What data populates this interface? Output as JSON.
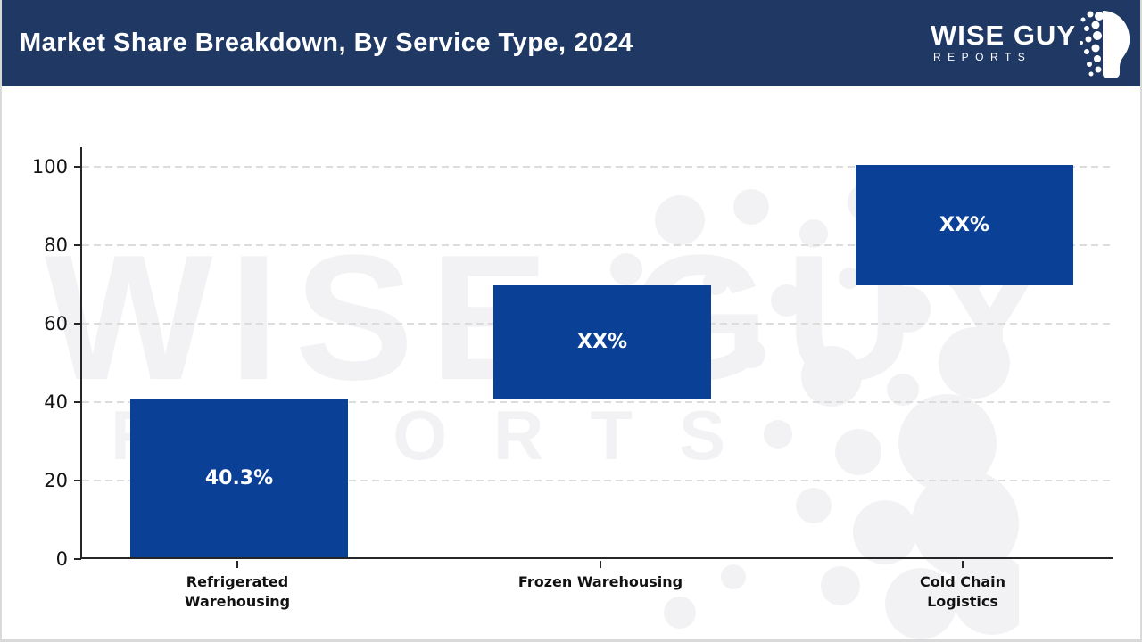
{
  "header": {
    "title": "Market Share Breakdown, By Service Type, 2024",
    "logo": {
      "name": "WISE GUY",
      "sub": "REPORTS"
    }
  },
  "watermark": {
    "line1": "WISE GUY",
    "line2": "REPORTS"
  },
  "chart_data": {
    "type": "bar",
    "subtype": "waterfall",
    "title": "Market Share Breakdown, By Service Type, 2024",
    "categories": [
      "Refrigerated Warehousing",
      "Frozen Warehousing",
      "Cold Chain Logistics"
    ],
    "category_lines": [
      [
        "Refrigerated",
        "Warehousing"
      ],
      [
        "Frozen Warehousing"
      ],
      [
        "Cold Chain",
        "Logistics"
      ]
    ],
    "series": [
      {
        "name": "Refrigerated Warehousing",
        "start": 0,
        "end": 40.3,
        "label": "40.3%"
      },
      {
        "name": "Frozen Warehousing",
        "start": 40.3,
        "end": 69.4,
        "label": "XX%"
      },
      {
        "name": "Cold Chain Logistics",
        "start": 69.4,
        "end": 100,
        "label": "XX%"
      }
    ],
    "xlabel": "",
    "ylabel": "",
    "y_ticks": [
      0,
      20,
      40,
      60,
      80,
      100
    ],
    "ylim": [
      0,
      105
    ],
    "grid": "horizontal-dashed",
    "legend": "none",
    "bar_color": "#0a4096",
    "bar_label_color": "#ffffff"
  },
  "colors": {
    "header_bg": "#1f3864",
    "axis": "#262626",
    "grid": "#dcdcdc",
    "watermark": "#f2f2f5"
  }
}
